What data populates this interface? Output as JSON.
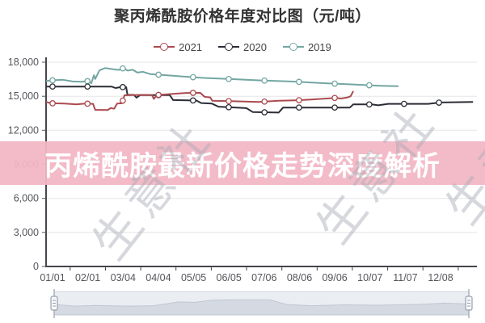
{
  "title": "聚丙烯酰胺价格年度对比图（元/吨）",
  "overlay": {
    "headline": "丙烯酰胺最新价格走势深度解析",
    "banner_color": "#f2b7c5",
    "text_color": "#ffffff"
  },
  "watermark": {
    "text": "生意社",
    "color": "#a6aab4"
  },
  "legend": [
    {
      "label": "2021",
      "color": "#ab4a50"
    },
    {
      "label": "2020",
      "color": "#2b2d36"
    },
    {
      "label": "2019",
      "color": "#73a6a3"
    }
  ],
  "chart_data": {
    "type": "line",
    "title": "聚丙烯酰胺价格年度对比图（元/吨）",
    "unit": "元/吨",
    "ylim": [
      0,
      18000
    ],
    "y_ticks": [
      0,
      3000,
      6000,
      9000,
      12000,
      15000,
      18000
    ],
    "x_labels": [
      "01/01",
      "02/01",
      "03/04",
      "04/04",
      "05/05",
      "06/05",
      "07/06",
      "08/06",
      "09/06",
      "10/07",
      "11/07",
      "12/08"
    ],
    "grid": true,
    "legend_position": "top",
    "marker_x": [
      0.015,
      0.096,
      0.178,
      0.261,
      0.341,
      0.424,
      0.507,
      0.587,
      0.67,
      0.75,
      0.831,
      0.912
    ],
    "series": [
      {
        "name": "2019",
        "color": "#73a6a3",
        "points": [
          [
            0.0,
            16350
          ],
          [
            0.021,
            16420
          ],
          [
            0.039,
            16450
          ],
          [
            0.062,
            16300
          ],
          [
            0.081,
            16270
          ],
          [
            0.096,
            16330
          ],
          [
            0.105,
            16150
          ],
          [
            0.111,
            16850
          ],
          [
            0.114,
            16520
          ],
          [
            0.124,
            17280
          ],
          [
            0.137,
            17480
          ],
          [
            0.156,
            17380
          ],
          [
            0.169,
            17320
          ],
          [
            0.178,
            17450
          ],
          [
            0.19,
            17260
          ],
          [
            0.201,
            17330
          ],
          [
            0.212,
            17080
          ],
          [
            0.225,
            17150
          ],
          [
            0.242,
            16950
          ],
          [
            0.268,
            16880
          ],
          [
            0.315,
            16750
          ],
          [
            0.362,
            16620
          ],
          [
            0.424,
            16520
          ],
          [
            0.493,
            16400
          ],
          [
            0.568,
            16300
          ],
          [
            0.644,
            16150
          ],
          [
            0.719,
            16020
          ],
          [
            0.775,
            15920
          ],
          [
            0.818,
            15880
          ]
        ]
      },
      {
        "name": "2020",
        "color": "#2b2d36",
        "points": [
          [
            0.0,
            15850
          ],
          [
            0.152,
            15850
          ],
          [
            0.161,
            15720
          ],
          [
            0.173,
            15800
          ],
          [
            0.186,
            15800
          ],
          [
            0.189,
            15120
          ],
          [
            0.204,
            15120
          ],
          [
            0.21,
            14870
          ],
          [
            0.218,
            15100
          ],
          [
            0.287,
            15100
          ],
          [
            0.295,
            14660
          ],
          [
            0.349,
            14620
          ],
          [
            0.36,
            14400
          ],
          [
            0.385,
            14350
          ],
          [
            0.4,
            14080
          ],
          [
            0.465,
            13950
          ],
          [
            0.48,
            13600
          ],
          [
            0.54,
            13560
          ],
          [
            0.55,
            14000
          ],
          [
            0.705,
            14000
          ],
          [
            0.713,
            14280
          ],
          [
            0.756,
            14280
          ],
          [
            0.771,
            14200
          ],
          [
            0.794,
            14330
          ],
          [
            0.887,
            14330
          ],
          [
            0.916,
            14450
          ],
          [
            0.991,
            14500
          ]
        ]
      },
      {
        "name": "2021",
        "color": "#ab4a50",
        "points": [
          [
            0.0,
            14500
          ],
          [
            0.011,
            14380
          ],
          [
            0.043,
            14350
          ],
          [
            0.071,
            14280
          ],
          [
            0.09,
            14350
          ],
          [
            0.109,
            14330
          ],
          [
            0.114,
            13800
          ],
          [
            0.143,
            13780
          ],
          [
            0.15,
            13960
          ],
          [
            0.158,
            13900
          ],
          [
            0.165,
            14350
          ],
          [
            0.176,
            14380
          ],
          [
            0.182,
            15080
          ],
          [
            0.221,
            15120
          ],
          [
            0.246,
            15100
          ],
          [
            0.25,
            14760
          ],
          [
            0.257,
            15110
          ],
          [
            0.278,
            15160
          ],
          [
            0.325,
            15290
          ],
          [
            0.358,
            15300
          ],
          [
            0.368,
            14950
          ],
          [
            0.381,
            14900
          ],
          [
            0.386,
            14600
          ],
          [
            0.437,
            14560
          ],
          [
            0.493,
            14500
          ],
          [
            0.54,
            14600
          ],
          [
            0.587,
            14650
          ],
          [
            0.644,
            14780
          ],
          [
            0.672,
            14850
          ],
          [
            0.685,
            14800
          ],
          [
            0.7,
            14900
          ],
          [
            0.707,
            15000
          ],
          [
            0.713,
            15450
          ]
        ]
      }
    ]
  },
  "datazoom": {
    "mini_area": [
      [
        0,
        0.5
      ],
      [
        0.05,
        0.42
      ],
      [
        0.1,
        0.45
      ],
      [
        0.18,
        0.42
      ],
      [
        0.24,
        0.44
      ],
      [
        0.3,
        0.62
      ],
      [
        0.34,
        0.6
      ],
      [
        0.38,
        0.7
      ],
      [
        0.42,
        0.72
      ],
      [
        0.52,
        0.72
      ],
      [
        0.56,
        0.5
      ],
      [
        0.62,
        0.44
      ],
      [
        0.7,
        0.48
      ],
      [
        0.78,
        0.46
      ],
      [
        0.88,
        0.5
      ],
      [
        0.94,
        0.56
      ],
      [
        1,
        0.52
      ]
    ]
  }
}
